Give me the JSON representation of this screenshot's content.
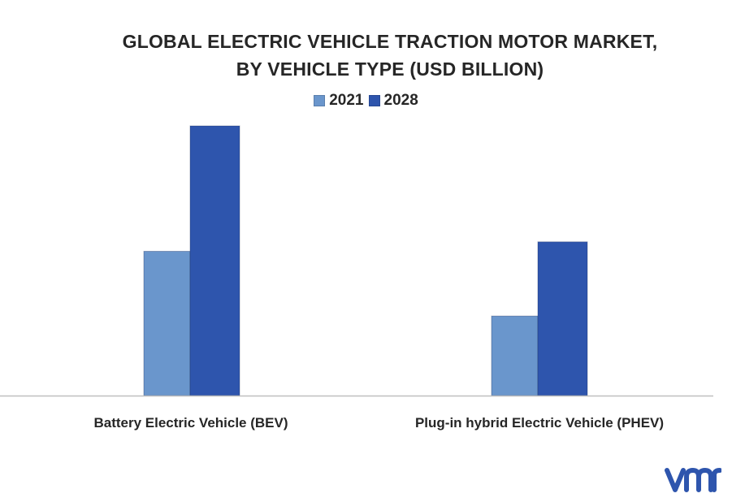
{
  "chart_data": {
    "type": "bar",
    "title": "GLOBAL ELECTRIC VEHICLE TRACTION MOTOR MARKET, BY VEHICLE TYPE (USD BILLION)",
    "title_lines": [
      "GLOBAL ELECTRIC VEHICLE TRACTION MOTOR MARKET,",
      "BY VEHICLE TYPE (USD BILLION)"
    ],
    "xlabel": "",
    "ylabel": "",
    "categories": [
      "Battery Electric Vehicle (BEV)",
      "Plug-in hybrid Electric Vehicle (PHEV)"
    ],
    "series": [
      {
        "name": "2021",
        "color": "#6a96cc",
        "values": [
          53.5,
          29.5
        ]
      },
      {
        "name": "2028",
        "color": "#2e55ad",
        "values": [
          100,
          57
        ]
      }
    ],
    "ylim": [
      0,
      100
    ],
    "grid": false,
    "legend_position": "top"
  },
  "logo": {
    "text": "vmr",
    "color": "#2e55ad"
  }
}
